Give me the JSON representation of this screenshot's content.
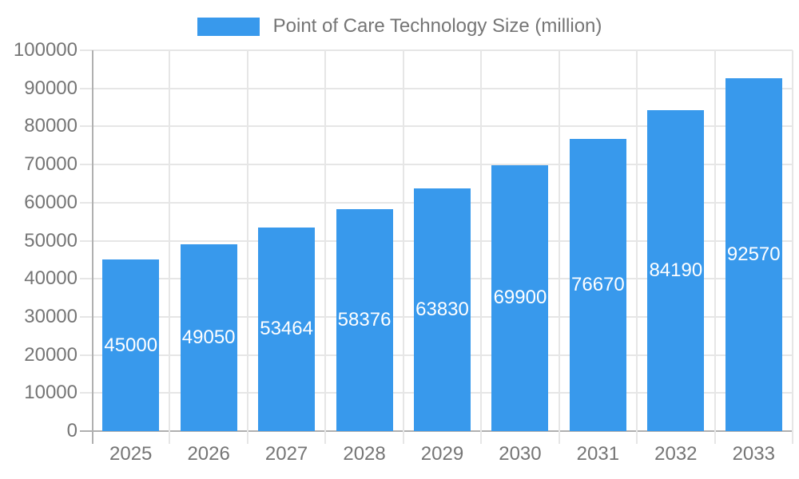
{
  "chart_data": {
    "type": "bar",
    "title": "Point of Care Technology Size (million)",
    "legend": {
      "position": "top",
      "entries": [
        {
          "label": "Point of Care Technology Size (million)",
          "color": "#3899EC"
        }
      ]
    },
    "categories": [
      "2025",
      "2026",
      "2027",
      "2028",
      "2029",
      "2030",
      "2031",
      "2032",
      "2033"
    ],
    "series": [
      {
        "name": "Point of Care Technology Size (million)",
        "values": [
          45000,
          49050,
          53464,
          58376,
          63830,
          69900,
          76670,
          84190,
          92570
        ],
        "data_labels": [
          "45000",
          "49050",
          "53464",
          "58376",
          "63830",
          "69900",
          "76670",
          "84190",
          "92570"
        ],
        "color": "#3899EC"
      }
    ],
    "y_axis": {
      "min": 0,
      "max": 100000,
      "step": 10000,
      "tick_labels": [
        "0",
        "10000",
        "20000",
        "30000",
        "40000",
        "50000",
        "60000",
        "70000",
        "80000",
        "90000",
        "100000"
      ]
    },
    "x_axis": {
      "tick_labels": [
        "2025",
        "2026",
        "2027",
        "2028",
        "2029",
        "2030",
        "2031",
        "2032",
        "2033"
      ]
    },
    "grid": {
      "horizontal": true,
      "vertical": true
    },
    "colors": {
      "bar": "#3899EC",
      "grid_line": "#e6e6e6",
      "axis_line": "#b0b0b0",
      "tick_text": "#757575",
      "legend_text": "#757575",
      "bar_label_text": "#ffffff",
      "background": "#ffffff"
    }
  }
}
